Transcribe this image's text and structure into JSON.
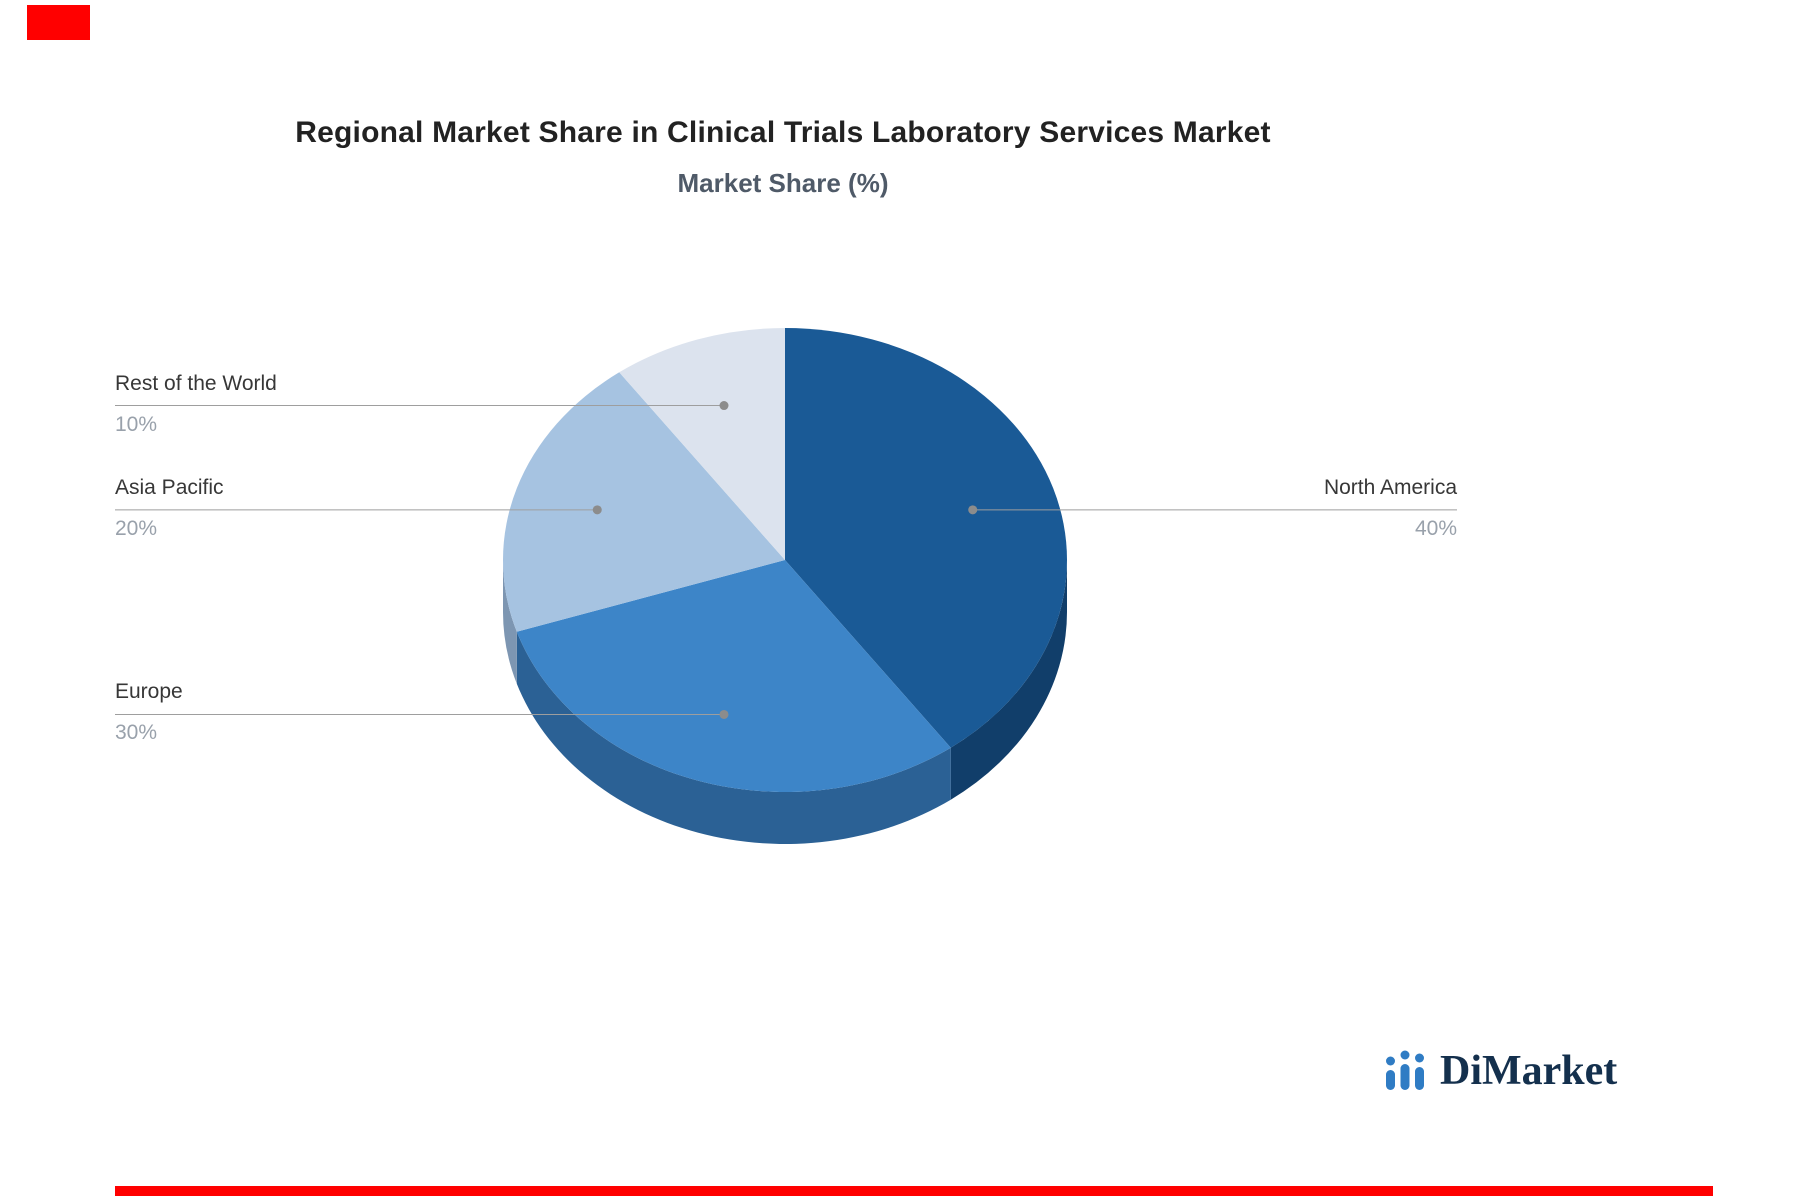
{
  "page": {
    "background": "#ffffff"
  },
  "chart_data": {
    "type": "pie",
    "style": "3d",
    "title": "Regional Market Share in Clinical Trials Laboratory Services Market",
    "subtitle": "Market Share (%)",
    "unit": "%",
    "direction": "clockwise",
    "start_angle_deg": 0,
    "legend_position": "callout-labels-with-leader-lines",
    "segments": [
      {
        "label": "North America",
        "value": 40,
        "display": "40%",
        "color": "#1a5a96",
        "side_color": "#113e6a",
        "label_side": "right"
      },
      {
        "label": "Europe",
        "value": 30,
        "display": "30%",
        "color": "#3d85c8",
        "side_color": "#2b6195",
        "label_side": "left"
      },
      {
        "label": "Asia Pacific",
        "value": 20,
        "display": "20%",
        "color": "#a6c3e1",
        "side_color": "#7d96b2",
        "label_side": "left"
      },
      {
        "label": "Rest of the World",
        "value": 10,
        "display": "10%",
        "color": "#dce3ee",
        "side_color": "#aeb9c9",
        "label_side": "left"
      }
    ],
    "leader_line_color": "#9e9e9e",
    "leader_dot_color": "#8c8c8c",
    "label_color": "#373737",
    "value_color": "#99a1ab",
    "title_color": "#222222",
    "subtitle_color": "#4f5a68"
  },
  "branding": {
    "logo_text": "DiMarket",
    "logo_color": "#14304d",
    "icon": "bar-chart-icon",
    "icon_color": "#2f7cc4"
  },
  "decorations": {
    "top_left_marker_color": "#ff0000",
    "bottom_bar_color": "#ff0000"
  }
}
